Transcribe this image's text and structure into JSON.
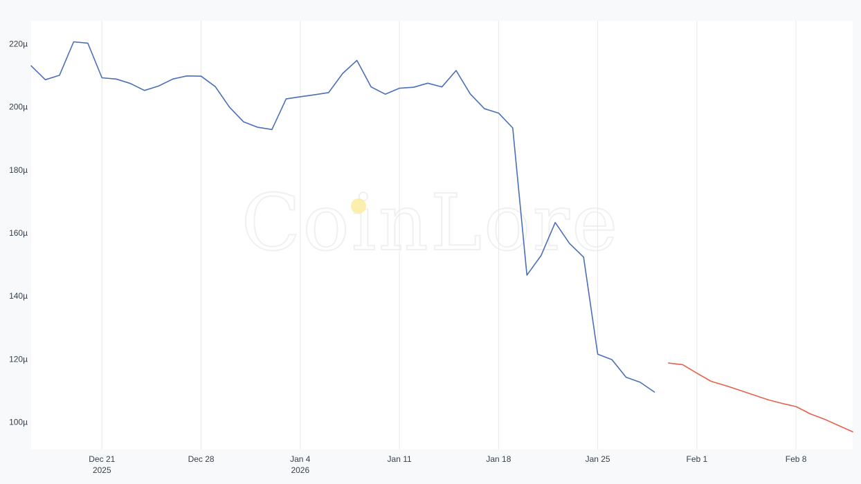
{
  "decorations": {
    "watermark_text": "CoinLore",
    "watermark_dot": {
      "day": 23.1,
      "value": 168.5
    }
  },
  "colors": {
    "page_bg": "#f8f9fa",
    "plot_bg": "#ffffff",
    "grid": "#e8e8e8",
    "axis_text": "#37404a",
    "price_line": "#4a6eb8",
    "forecast_line": "#e8604a",
    "watermark_dot": "#fbeb9d"
  },
  "chart_data": {
    "type": "line",
    "title": "",
    "xlabel": "",
    "ylabel": "",
    "y_unit": "µ",
    "grid": "vertical-only",
    "legend": "none",
    "ylim": [
      91.3,
      227.3
    ],
    "x_domain": [
      0,
      58
    ],
    "x_start_date": "2025-12-16",
    "y_ticks": [
      {
        "value": 100,
        "label": "100µ"
      },
      {
        "value": 120,
        "label": "120µ"
      },
      {
        "value": 140,
        "label": "140µ"
      },
      {
        "value": 160,
        "label": "160µ"
      },
      {
        "value": 180,
        "label": "180µ"
      },
      {
        "value": 200,
        "label": "200µ"
      },
      {
        "value": 220,
        "label": "220µ"
      }
    ],
    "x_ticks": [
      {
        "day": 5,
        "label": "Dec 21",
        "sublabel": "2025"
      },
      {
        "day": 12,
        "label": "Dec 28",
        "sublabel": ""
      },
      {
        "day": 19,
        "label": "Jan 4",
        "sublabel": "2026"
      },
      {
        "day": 26,
        "label": "Jan 11",
        "sublabel": ""
      },
      {
        "day": 33,
        "label": "Jan 18",
        "sublabel": ""
      },
      {
        "day": 40,
        "label": "Jan 25",
        "sublabel": ""
      },
      {
        "day": 47,
        "label": "Feb 1",
        "sublabel": ""
      },
      {
        "day": 54,
        "label": "Feb 8",
        "sublabel": ""
      }
    ],
    "series": [
      {
        "name": "price",
        "color": "#4a6eb8",
        "start_day": 0,
        "dates": [
          "2025-12-16",
          "2025-12-17",
          "2025-12-18",
          "2025-12-19",
          "2025-12-20",
          "2025-12-21",
          "2025-12-22",
          "2025-12-23",
          "2025-12-24",
          "2025-12-25",
          "2025-12-26",
          "2025-12-27",
          "2025-12-28",
          "2025-12-29",
          "2025-12-30",
          "2025-12-31",
          "2026-01-01",
          "2026-01-02",
          "2026-01-03",
          "2026-01-04",
          "2026-01-05",
          "2026-01-06",
          "2026-01-07",
          "2026-01-08",
          "2026-01-09",
          "2026-01-10",
          "2026-01-11",
          "2026-01-12",
          "2026-01-13",
          "2026-01-14",
          "2026-01-15",
          "2026-01-16",
          "2026-01-17",
          "2026-01-18",
          "2026-01-19",
          "2026-01-20",
          "2026-01-21",
          "2026-01-22",
          "2026-01-23",
          "2026-01-24",
          "2026-01-25",
          "2026-01-26",
          "2026-01-27",
          "2026-01-28",
          "2026-01-29"
        ],
        "values": [
          213.0,
          208.6,
          210.0,
          220.6,
          220.2,
          209.2,
          208.8,
          207.4,
          205.2,
          206.6,
          208.8,
          209.8,
          209.7,
          206.4,
          199.9,
          195.2,
          193.5,
          192.8,
          202.5,
          203.2,
          203.8,
          204.5,
          210.6,
          214.7,
          206.3,
          204.0,
          205.9,
          206.2,
          207.5,
          206.3,
          211.5,
          204.1,
          199.4,
          198.0,
          193.3,
          146.6,
          152.8,
          163.3,
          156.7,
          152.3,
          121.5,
          119.8,
          114.2,
          112.6,
          109.5
        ]
      },
      {
        "name": "forecast",
        "color": "#e8604a",
        "start_day": 45,
        "dates": [
          "2026-01-30",
          "2026-01-31",
          "2026-02-01",
          "2026-02-02",
          "2026-02-03",
          "2026-02-04",
          "2026-02-05",
          "2026-02-06",
          "2026-02-07",
          "2026-02-08",
          "2026-02-09",
          "2026-02-10",
          "2026-02-11",
          "2026-02-12"
        ],
        "values": [
          118.7,
          118.2,
          115.5,
          112.9,
          111.6,
          110.1,
          108.6,
          107.1,
          105.9,
          104.9,
          102.6,
          100.9,
          98.9,
          96.9
        ]
      }
    ]
  }
}
